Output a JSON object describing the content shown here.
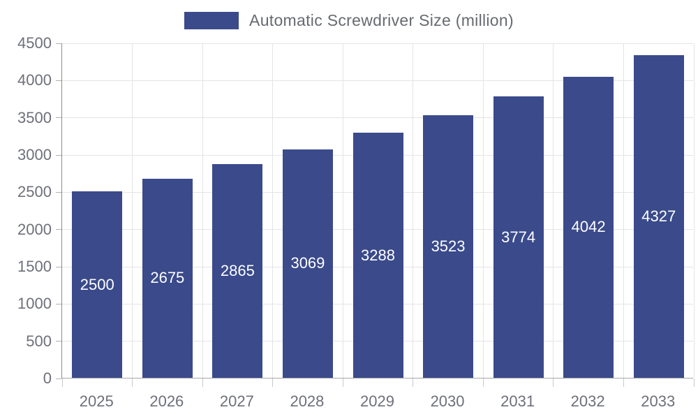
{
  "legend": {
    "label": "Automatic Screwdriver Size (million)",
    "swatch_color": "#3A4A8B"
  },
  "chart_data": {
    "type": "bar",
    "title": "",
    "series_name": "Automatic Screwdriver Size (million)",
    "categories": [
      "2025",
      "2026",
      "2027",
      "2028",
      "2029",
      "2030",
      "2031",
      "2032",
      "2033"
    ],
    "values": [
      2500,
      2675,
      2865,
      3069,
      3288,
      3523,
      3774,
      4042,
      4327
    ],
    "xlabel": "",
    "ylabel": "",
    "ylim": [
      0,
      4500
    ],
    "yticks": [
      0,
      500,
      1000,
      1500,
      2000,
      2500,
      3000,
      3500,
      4000,
      4500
    ],
    "grid": true,
    "legend_position": "top",
    "bar_labels_position": "inside-middle",
    "colors": {
      "bar": "#3A4A8B",
      "bar_label": "#FFFFFF",
      "gridline": "#E4E4E4",
      "y_axis_line": "#8C8C8C",
      "x_axis_line": "#A6A6A6",
      "tick": "#C9C9C9",
      "axis_label": "#6E7079",
      "legend_text": "#666B70",
      "background": "#FFFFFF"
    }
  }
}
